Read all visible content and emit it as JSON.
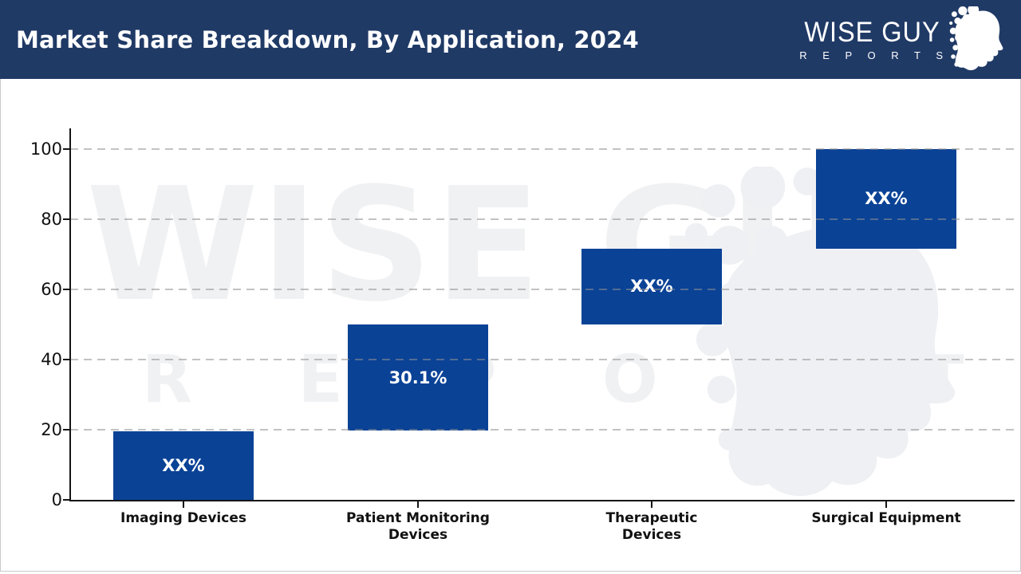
{
  "header": {
    "title": "Market Share Breakdown, By Application, 2024",
    "bg_color": "#203a66",
    "logo": {
      "line1": "WISE GUY",
      "line2": "R E P O R T S"
    }
  },
  "watermark": {
    "line1": "WISE GU",
    "line2": "R E P O R T S"
  },
  "chart_data": {
    "type": "bar",
    "subtype": "waterfall-floating-segments",
    "title": "Market Share Breakdown, By Application, 2024",
    "categories": [
      "Imaging Devices",
      "Patient Monitoring Devices",
      "Therapeutic Devices",
      "Surgical Equipment"
    ],
    "categories_lines": [
      [
        "Imaging Devices"
      ],
      [
        "Patient Monitoring",
        "Devices"
      ],
      [
        "Therapeutic",
        "Devices"
      ],
      [
        "Surgical Equipment"
      ]
    ],
    "segments": [
      {
        "category": "Imaging Devices",
        "start": 0,
        "end": 19.5,
        "size": 19.5,
        "label": "XX%"
      },
      {
        "category": "Patient Monitoring Devices",
        "start": 19.8,
        "end": 49.9,
        "size": 30.1,
        "label": "30.1%"
      },
      {
        "category": "Therapeutic Devices",
        "start": 50.0,
        "end": 71.6,
        "size": 21.6,
        "label": "XX%"
      },
      {
        "category": "Surgical Equipment",
        "start": 71.6,
        "end": 100.0,
        "size": 28.4,
        "label": "XX%"
      }
    ],
    "xlabel": "",
    "ylabel": "",
    "ylim": [
      0,
      105
    ],
    "yticks": [
      0,
      20,
      40,
      60,
      80,
      100
    ],
    "grid": "horizontal-dashed",
    "legend": "none",
    "bar_color": "#0a4296",
    "bar_label_color": "#ffffff",
    "axis_color": "#151515",
    "gridline_color": "#9a9a9a"
  }
}
